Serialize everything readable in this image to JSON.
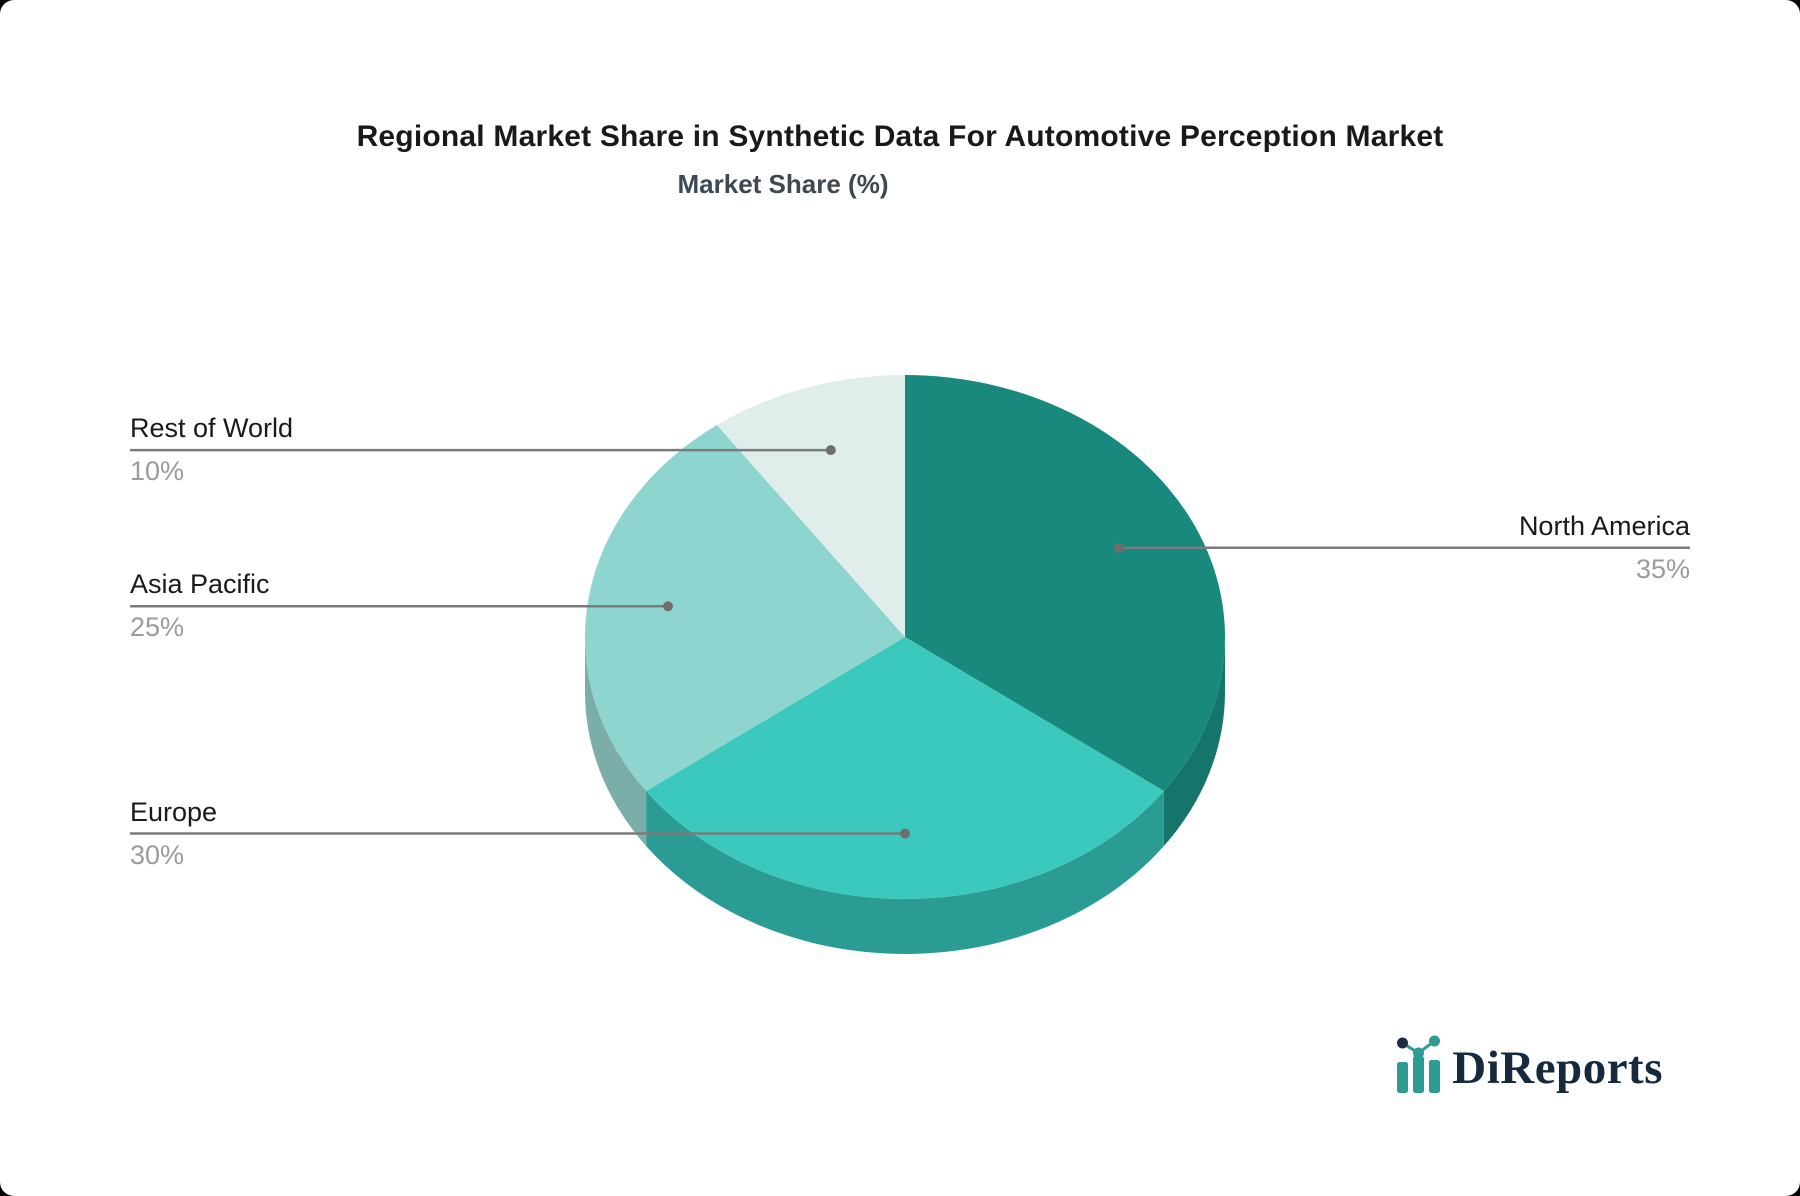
{
  "title": "Regional Market Share in Synthetic Data For Automotive Perception Market",
  "subtitle": "Market Share (%)",
  "chart_data": {
    "type": "pie",
    "title": "Regional Market Share in Synthetic Data For Automotive Perception Market",
    "subtitle": "Market Share (%)",
    "unit": "%",
    "style": "3d-pie",
    "start_angle": "12-o-clock",
    "direction": "clockwise",
    "slices": [
      {
        "label": "North America",
        "value": 35,
        "display": "35%",
        "color": "#19897E",
        "side_color": "#15756B",
        "label_side": "right"
      },
      {
        "label": "Europe",
        "value": 30,
        "display": "30%",
        "color": "#3CC9BD",
        "side_color": "#2B9C93",
        "label_side": "left"
      },
      {
        "label": "Asia Pacific",
        "value": 25,
        "display": "25%",
        "color": "#8FD5CF",
        "side_color": "#7BAEA8",
        "label_side": "left"
      },
      {
        "label": "Rest of World",
        "value": 10,
        "display": "10%",
        "color": "#E0EEEB",
        "side_color": "#C9DFDB",
        "label_side": "left"
      }
    ],
    "leader_line_color": "#7B7B7B",
    "leader_dot_color": "#6E6E6E",
    "label_text_color": "#1A1A1A",
    "value_text_color": "#9B9B9B"
  },
  "branding": {
    "name": "DiReports",
    "icon": "bar-line-chart-icon",
    "text_color": "#16293D",
    "icon_bar_color": "#2E9B94",
    "icon_dot_dark_color": "#1C2E45"
  }
}
